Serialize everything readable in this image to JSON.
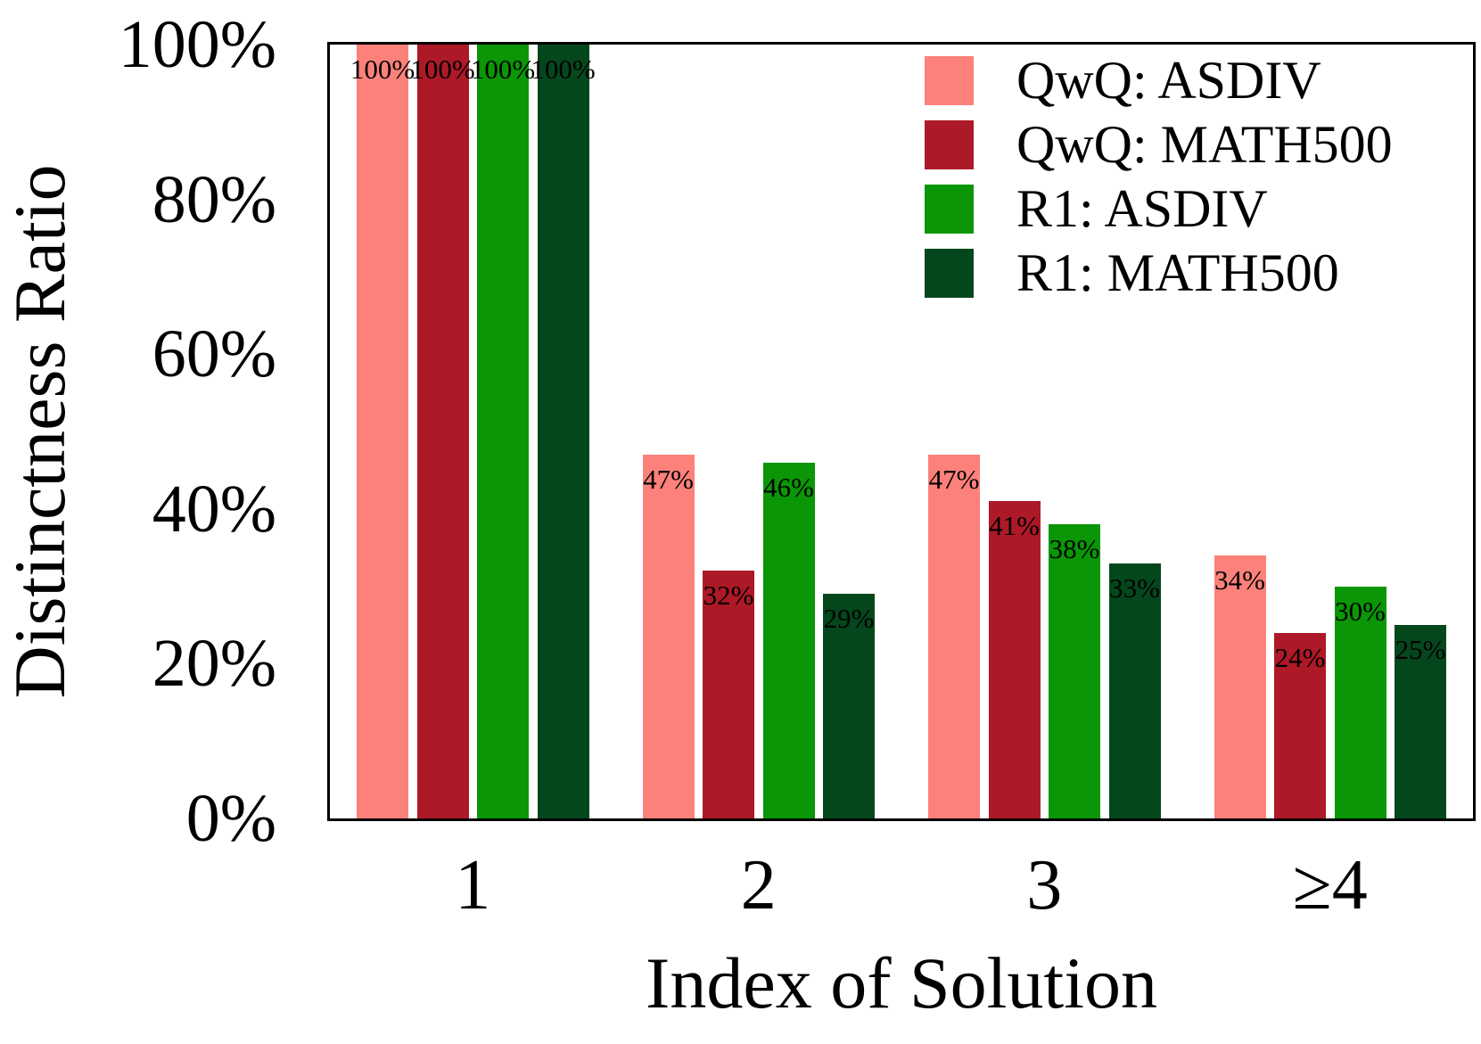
{
  "figure": {
    "background": "#ffffff",
    "axis_color": "#000000",
    "separator_color": "#cfcfcf"
  },
  "chart_data": {
    "type": "bar",
    "title": "",
    "xlabel": "Index of Solution",
    "ylabel": "Distinctness Ratio",
    "categories": [
      "1",
      "2",
      "3",
      "≥4"
    ],
    "series": [
      {
        "name": "QwQ: ASDIV",
        "color": "#FB817A",
        "values": [
          100,
          47,
          47,
          34
        ]
      },
      {
        "name": "QwQ: MATH500",
        "color": "#AD1927",
        "values": [
          100,
          32,
          41,
          24
        ]
      },
      {
        "name": "R1: ASDIV",
        "color": "#0A9606",
        "values": [
          100,
          46,
          38,
          30
        ]
      },
      {
        "name": "R1: MATH500",
        "color": "#05471D",
        "values": [
          100,
          29,
          33,
          25
        ]
      }
    ],
    "bar_value_labels": [
      [
        "100%",
        "47%",
        "47%",
        "34%"
      ],
      [
        "100%",
        "32%",
        "41%",
        "24%"
      ],
      [
        "100%",
        "46%",
        "38%",
        "30%"
      ],
      [
        "100%",
        "29%",
        "33%",
        "25%"
      ]
    ],
    "value_label_format": "{v}%",
    "ylim": [
      0,
      100
    ],
    "yticks": {
      "values": [
        0,
        20,
        40,
        60,
        80,
        100
      ],
      "labels": [
        "0%",
        "20%",
        "40%",
        "60%",
        "80%",
        "100%"
      ]
    },
    "legend_position": "upper right",
    "legend_frame": false,
    "grid": "dashed vertical separators between category groups"
  }
}
